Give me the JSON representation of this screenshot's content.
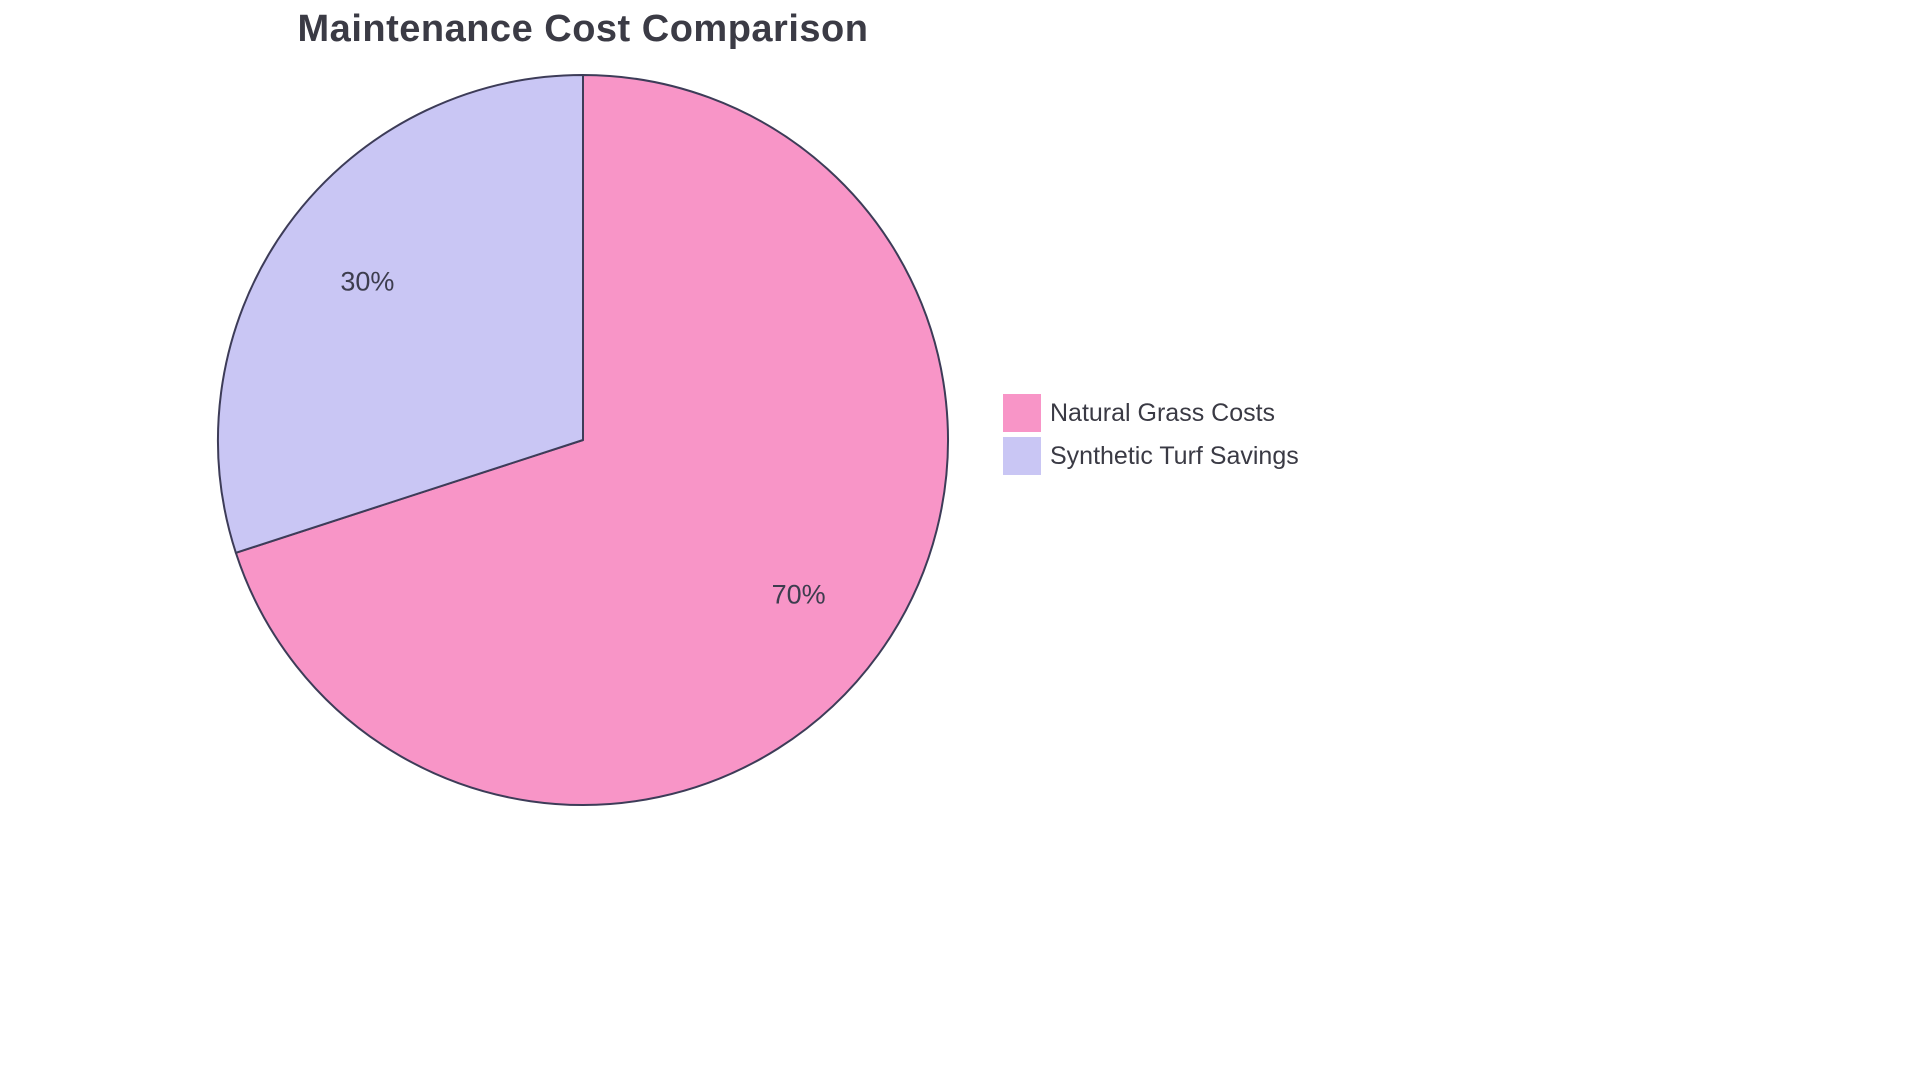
{
  "chart_data": {
    "type": "pie",
    "title": "Maintenance Cost Comparison",
    "slices": [
      {
        "label": "Natural Grass Costs",
        "value": 70,
        "percent_label": "70%",
        "color": "#F895C7"
      },
      {
        "label": "Synthetic Turf Savings",
        "value": 30,
        "percent_label": "30%",
        "color": "#C9C6F4"
      }
    ],
    "start_angle_deg": 0,
    "direction": "clockwise",
    "stroke_color": "#3d3c58",
    "stroke_width": 2,
    "label_color": "#3d3d4e",
    "title_color": "#3b3b45",
    "legend_position": "right",
    "background": "#ffffff"
  }
}
